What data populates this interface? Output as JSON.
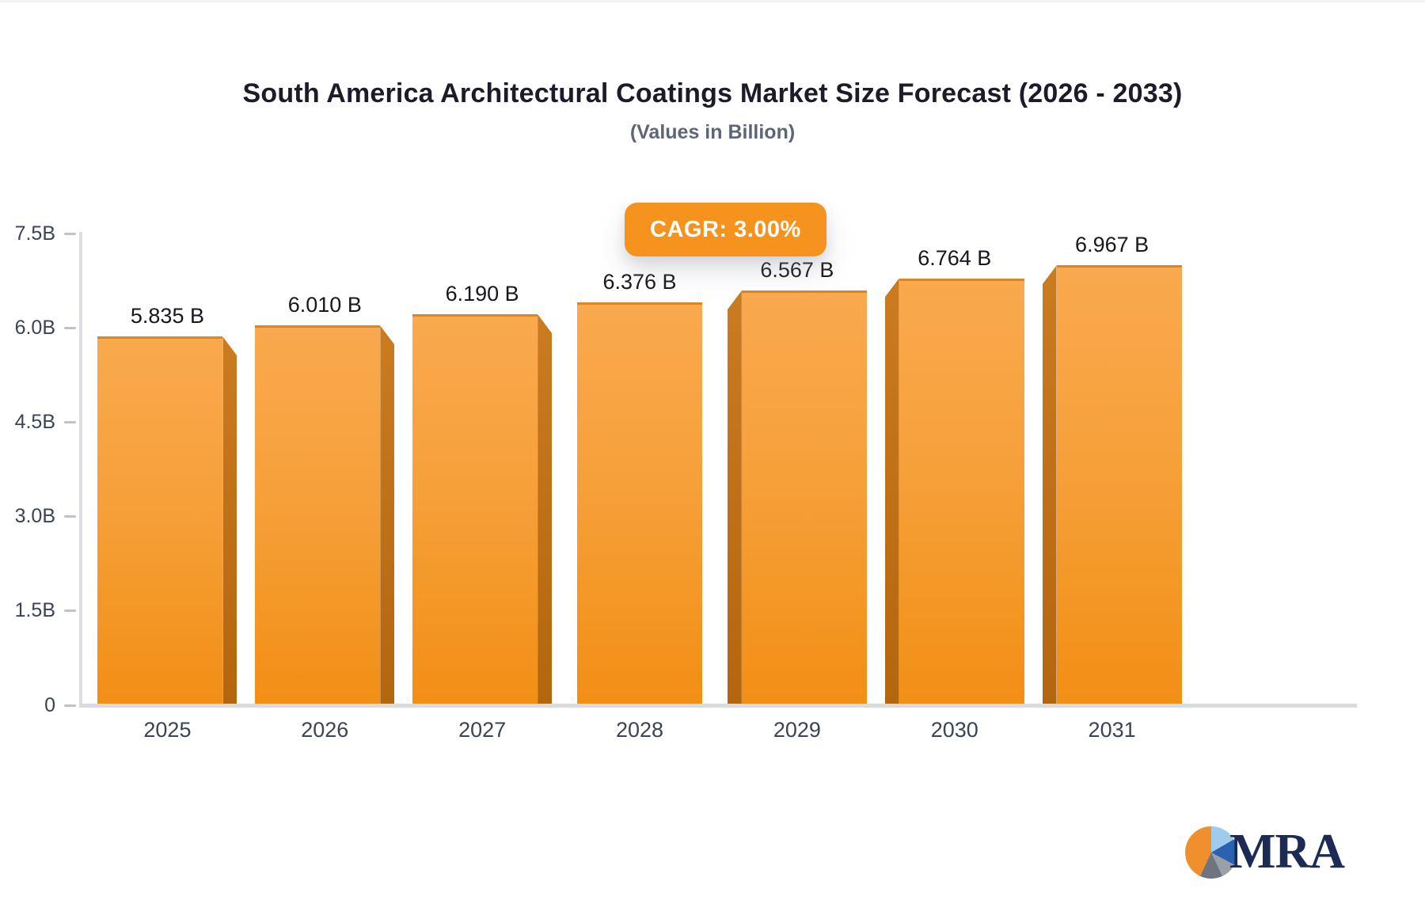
{
  "title": "South America Architectural Coatings Market Size Forecast (2026 - 2033)",
  "subtitle": "(Values in Billion)",
  "cagr_badge": "CAGR: 3.00%",
  "logo": {
    "text": "MRA"
  },
  "colors": {
    "accent": "#f6921e",
    "bar_face_top": "#f9a94e",
    "bar_face_bottom": "#f28f15",
    "bar_side": "#c0701a",
    "axis_line": "#d9dbdf",
    "tick_dash": "#bfc3c9",
    "value_label": "#17171f",
    "axis_label": "#3b4354",
    "title_color": "#1b1b29",
    "subtitle_color": "#5c6676",
    "logo_navy": "#1b2b55"
  },
  "chart_data": {
    "type": "bar",
    "title": "South America Architectural Coatings Market Size Forecast (2026 - 2033)",
    "subtitle": "(Values in Billion)",
    "categories": [
      "2025",
      "2026",
      "2027",
      "2028",
      "2029",
      "2030",
      "2031"
    ],
    "values": [
      5.835,
      6.01,
      6.19,
      6.376,
      6.567,
      6.764,
      6.967
    ],
    "bar_labels": [
      "5.835 B",
      "6.010 B",
      "6.190 B",
      "6.376 B",
      "6.567 B",
      "6.764 B",
      "6.967 B"
    ],
    "annotation": "CAGR: 3.00%",
    "ylabel": "",
    "xlabel": "",
    "ylim": [
      0,
      7.5
    ],
    "y_ticks": [
      {
        "value": 7.5,
        "label": "7.5B"
      },
      {
        "value": 6.0,
        "label": "6.0B"
      },
      {
        "value": 4.5,
        "label": "4.5B"
      },
      {
        "value": 3.0,
        "label": "3.0B"
      },
      {
        "value": 1.5,
        "label": "1.5B"
      },
      {
        "value": 0,
        "label": "0"
      }
    ],
    "grid": false,
    "legend": false,
    "bar_style": "3d",
    "bar_sides": [
      "right",
      "right",
      "right",
      "none",
      "left",
      "left",
      "left"
    ]
  }
}
